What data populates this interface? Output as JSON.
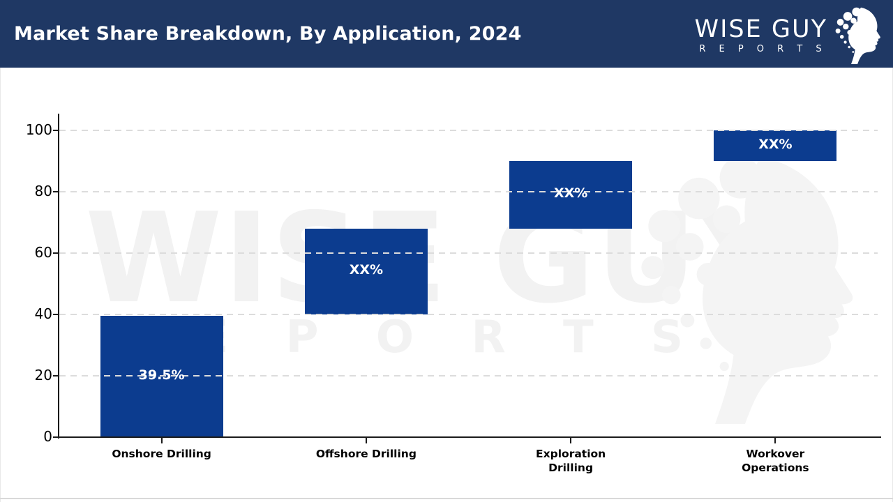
{
  "header": {
    "title": "Market Share Breakdown, By Application, 2024",
    "bg_color": "#1F3864",
    "brand": {
      "name": "WISE GUY",
      "subtitle": "R E P O R T S"
    }
  },
  "watermark": {
    "line1": "WISE GUY",
    "line2": "R E P O R T S"
  },
  "chart_data": {
    "type": "bar",
    "subtype": "waterfall",
    "title": "Market Share Breakdown, By Application, 2024",
    "categories": [
      "Onshore Drilling",
      "Offshore Drilling",
      "Exploration Drilling",
      "Workover Operations"
    ],
    "category_lines": [
      [
        "Onshore Drilling"
      ],
      [
        "Offshore Drilling"
      ],
      [
        "Exploration",
        "Drilling"
      ],
      [
        "Workover",
        "Operations"
      ]
    ],
    "segments": [
      {
        "category": "Onshore Drilling",
        "start": 0,
        "end": 39.5,
        "label": "39.5%"
      },
      {
        "category": "Offshore Drilling",
        "start": 40,
        "end": 68,
        "label": "XX%"
      },
      {
        "category": "Exploration Drilling",
        "start": 68,
        "end": 90,
        "label": "XX%"
      },
      {
        "category": "Workover Operations",
        "start": 90,
        "end": 100,
        "label": "XX%"
      }
    ],
    "xlabel": "",
    "ylabel": "",
    "ylim": [
      0,
      100
    ],
    "yticks": [
      0,
      20,
      40,
      60,
      80,
      100
    ],
    "grid": "horizontal-dashed",
    "grid_on_top_of_bars": true,
    "legend": "none",
    "bar_color": "#0C3C8F",
    "bar_label_color": "#FFFFFF",
    "grid_color": "#DCDCDC",
    "axis_color": "#1A1A1A",
    "watermark_color": "#F2F2F2"
  }
}
